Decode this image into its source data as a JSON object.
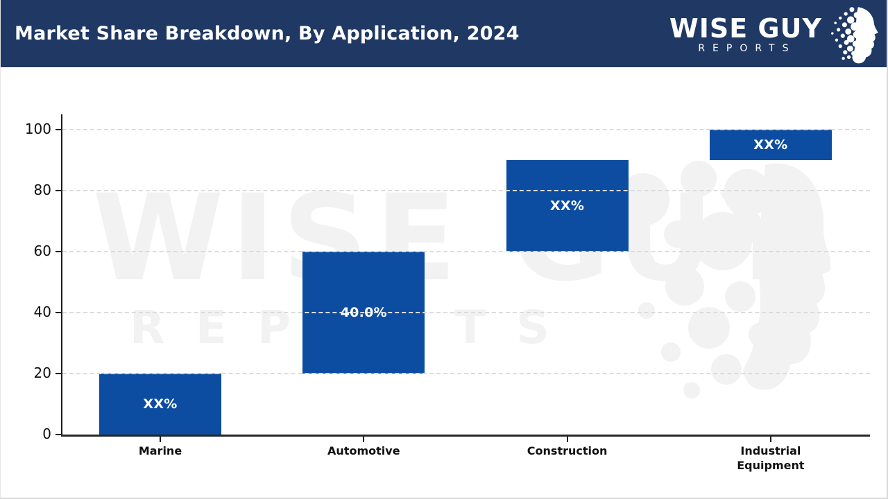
{
  "header": {
    "title": "Market Share Breakdown, By Application, 2024",
    "logo": {
      "line1": "WISE GUY",
      "line2": "REPORTS"
    }
  },
  "watermark": {
    "line1": "WISE GUY",
    "line2": "REPORTS"
  },
  "colors": {
    "header_bg": "#1f3864",
    "bar": "#0c4da2",
    "bar_label": "#ffffff",
    "axis": "#1a1a1a",
    "grid": "#dcdcdc",
    "watermark": "#f2f2f2"
  },
  "chart_data": {
    "type": "bar",
    "subtype": "waterfall",
    "title": "Market Share Breakdown, By Application, 2024",
    "categories": [
      "Marine",
      "Automotive",
      "Construction",
      "Industrial Equipment"
    ],
    "bars": [
      {
        "category": "Marine",
        "start": 0,
        "end": 20,
        "label": "XX%"
      },
      {
        "category": "Automotive",
        "start": 20,
        "end": 60,
        "label": "40.0%"
      },
      {
        "category": "Construction",
        "start": 60,
        "end": 90,
        "label": "XX%"
      },
      {
        "category": "Industrial Equipment",
        "start": 90,
        "end": 100,
        "label": "XX%"
      }
    ],
    "ylim": [
      0,
      100
    ],
    "yticks": [
      0,
      20,
      40,
      60,
      80,
      100
    ],
    "xlabel": "",
    "ylabel": "",
    "grid": "horizontal-dashed",
    "legend": "none",
    "bar_color": "#0c4da2",
    "bar_label_color": "#ffffff"
  }
}
